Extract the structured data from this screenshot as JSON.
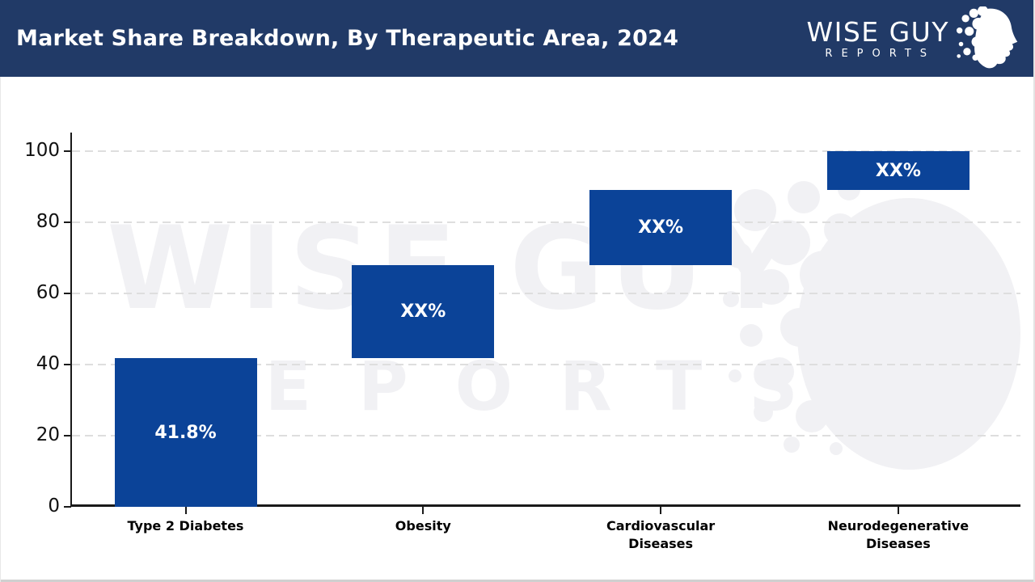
{
  "header": {
    "title": "Market Share Breakdown, By Therapeutic Area, 2024",
    "logo": {
      "line1": "WISE GUY",
      "line2": "REPORTS"
    }
  },
  "watermark": {
    "line1": "WISE GUY",
    "line2": "REPORTS"
  },
  "chart_data": {
    "type": "bar",
    "subtype": "waterfall",
    "title": "Market Share Breakdown, By Therapeutic Area, 2024",
    "categories": [
      "Type 2 Diabetes",
      "Obesity",
      "Cardiovascular\nDiseases",
      "Neurodegenerative\nDiseases"
    ],
    "segments": [
      {
        "category": "Type 2 Diabetes",
        "start": 0,
        "end": 41.8,
        "label": "41.8%"
      },
      {
        "category": "Obesity",
        "start": 41.8,
        "end": 68,
        "label": "XX%"
      },
      {
        "category": "Cardiovascular Diseases",
        "start": 68,
        "end": 89,
        "label": "XX%"
      },
      {
        "category": "Neurodegenerative Diseases",
        "start": 89,
        "end": 100,
        "label": "XX%"
      }
    ],
    "ylim": [
      0,
      100
    ],
    "yticks": [
      0,
      20,
      40,
      60,
      80,
      100
    ],
    "grid": "horizontal-dashed",
    "legend": "none",
    "xlabel": "",
    "ylabel": ""
  },
  "colors": {
    "header_bg": "#213a67",
    "bar_fill": "#0b4398",
    "bar_label": "#ffffff",
    "grid": "#dedede",
    "axis": "#1a1a1a",
    "watermark": "#f1f1f4"
  }
}
